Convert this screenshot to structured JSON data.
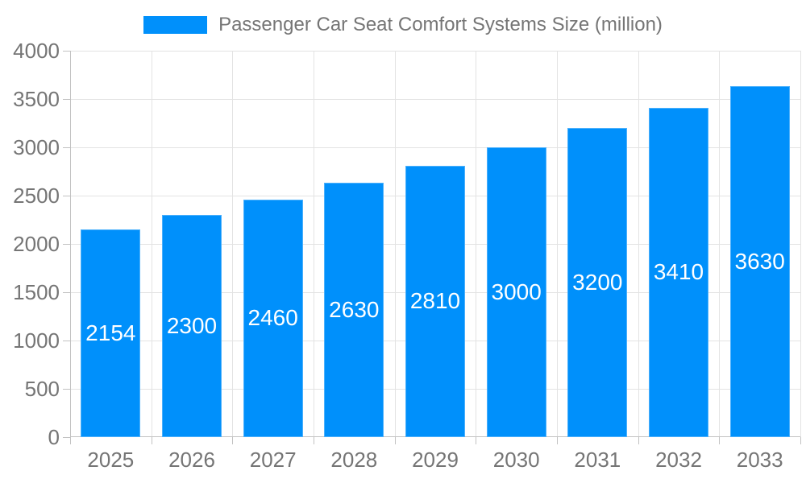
{
  "legend": {
    "label": "Passenger Car Seat Comfort Systems Size (million)"
  },
  "chart_data": {
    "type": "bar",
    "title": "Passenger Car Seat Comfort Systems Size (million)",
    "categories": [
      "2025",
      "2026",
      "2027",
      "2028",
      "2029",
      "2030",
      "2031",
      "2032",
      "2033"
    ],
    "values": [
      2154,
      2300,
      2460,
      2630,
      2810,
      3000,
      3200,
      3410,
      3630
    ],
    "series": [
      {
        "name": "Passenger Car Seat Comfort Systems Size (million)",
        "values": [
          2154,
          2300,
          2460,
          2630,
          2810,
          3000,
          3200,
          3410,
          3630
        ]
      }
    ],
    "xlabel": "",
    "ylabel": "",
    "ylim": [
      0,
      4000
    ],
    "ytick_step": 500,
    "yticks": [
      0,
      500,
      1000,
      1500,
      2000,
      2500,
      3000,
      3500,
      4000
    ],
    "grid": "horizontal-and-vertical",
    "legend_position": "top-center",
    "bar_value_labels": "inside-center",
    "colors": {
      "bar": "#0090FB",
      "bar_label": "#FFFFFF",
      "tick_label": "#757575",
      "legend_text": "#757575",
      "axis_line": "#C2C2C2",
      "grid_line": "#E3E3E3",
      "background": "#FFFFFF"
    }
  }
}
